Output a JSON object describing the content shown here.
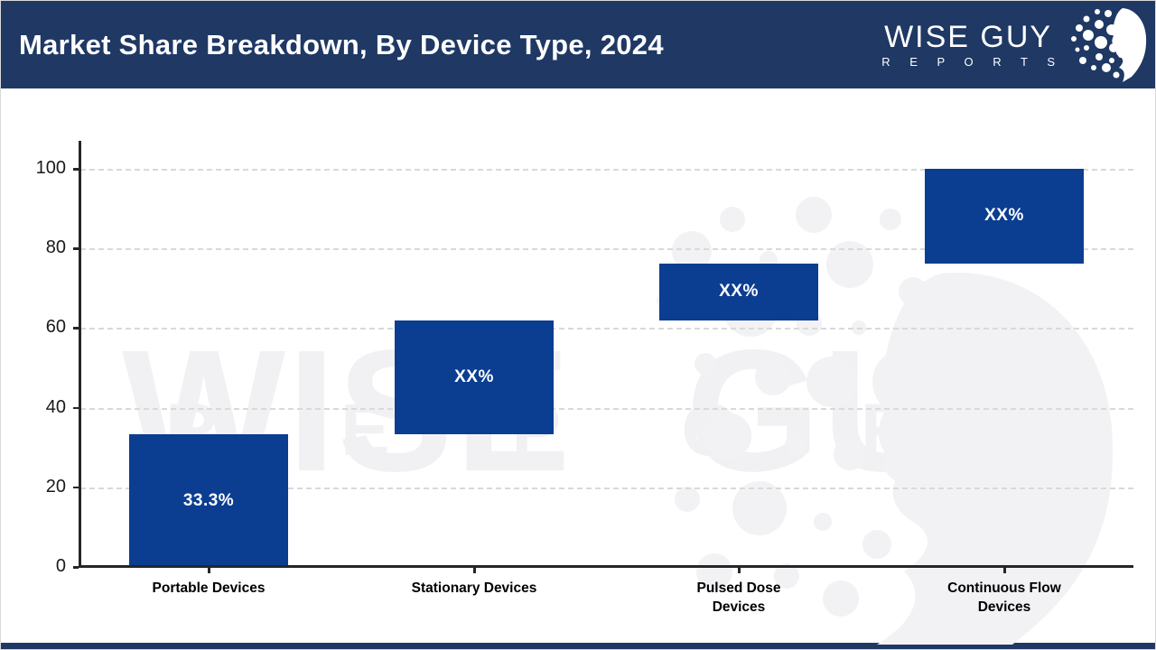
{
  "header": {
    "title": "Market Share Breakdown, By Device Type, 2024",
    "logo": {
      "name": "WISE GUY",
      "sub": "R E P O R T S"
    }
  },
  "watermark": {
    "line1": "WISE GUY",
    "line2": "R E P O R T S"
  },
  "colors": {
    "header_bg": "#1f3864",
    "footer_bg": "#1f3864",
    "bar": "#0b3d91",
    "bar_label": "#ffffff",
    "watermark": "#f1f1f4",
    "gridline": "#d9d9d9",
    "axis": "#262626"
  },
  "chart_data": {
    "type": "bar",
    "subtype": "waterfall",
    "title": "Market Share Breakdown, By Device Type, 2024",
    "categories": [
      "Portable Devices",
      "Stationary Devices",
      "Pulsed Dose Devices",
      "Continuous Flow Devices"
    ],
    "category_lines": [
      [
        "Portable Devices"
      ],
      [
        "Stationary Devices"
      ],
      [
        "Pulsed Dose",
        "Devices"
      ],
      [
        "Continuous Flow",
        "Devices"
      ]
    ],
    "bars": [
      {
        "category": "Portable Devices",
        "start": 0,
        "end": 33.3,
        "label": "33.3%"
      },
      {
        "category": "Stationary Devices",
        "start": 33.3,
        "end": 61.9,
        "label": "XX%"
      },
      {
        "category": "Pulsed Dose Devices",
        "start": 61.9,
        "end": 76.2,
        "label": "XX%"
      },
      {
        "category": "Continuous Flow Devices",
        "start": 76.2,
        "end": 100,
        "label": "XX%"
      }
    ],
    "ylim": [
      0,
      100
    ],
    "yticks": [
      0,
      20,
      40,
      60,
      80,
      100
    ],
    "xlabel": "",
    "ylabel": "",
    "grid": "dashed-horizontal",
    "legend": "none"
  }
}
